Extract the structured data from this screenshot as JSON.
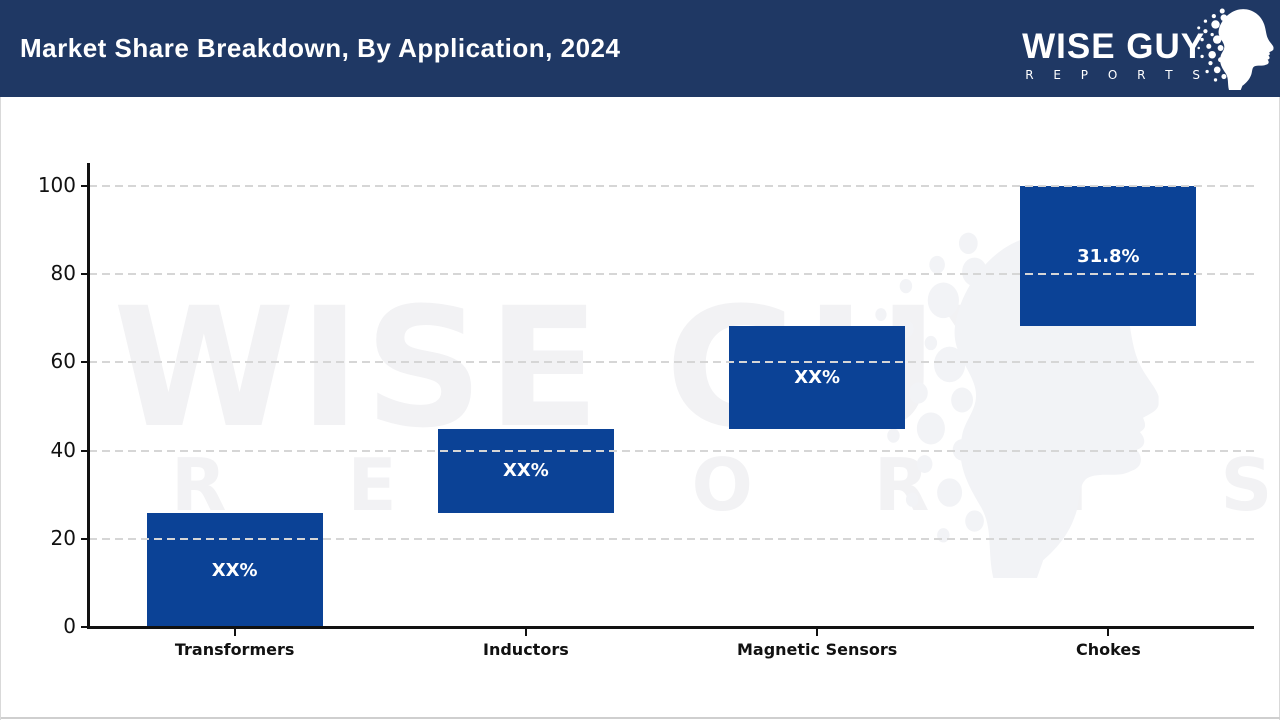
{
  "header": {
    "title": "Market Share Breakdown, By Application, 2024",
    "logo": {
      "brand": "WISE GUY",
      "sub": "R E P O R T S"
    }
  },
  "watermark": {
    "brand": "WISE GUY",
    "sub": "R E P O R T S"
  },
  "colors": {
    "header_bg": "#1f3864",
    "bar": "#0b4296",
    "bar_label": "#ffffff",
    "axis": "#111111",
    "grid": "#d6d6d6",
    "watermark": "#f2f2f4"
  },
  "chart_data": {
    "type": "bar",
    "subtype": "floating-waterfall",
    "title": "Market Share Breakdown, By Application, 2024",
    "categories": [
      "Transformers",
      "Inductors",
      "Magnetic Sensors",
      "Chokes"
    ],
    "segments": [
      {
        "start": 0,
        "end": 25.8
      },
      {
        "start": 25.8,
        "end": 45.0
      },
      {
        "start": 45.0,
        "end": 68.2
      },
      {
        "start": 68.2,
        "end": 100
      }
    ],
    "values": [
      25.8,
      19.2,
      23.2,
      31.8
    ],
    "bar_labels": [
      "XX%",
      "XX%",
      "XX%",
      "31.8%"
    ],
    "xlabel": "",
    "ylabel": "",
    "ylim": [
      0,
      100
    ],
    "yticks": [
      0,
      20,
      40,
      60,
      80,
      100
    ],
    "grid": "horizontal-dashed",
    "legend": "none"
  }
}
